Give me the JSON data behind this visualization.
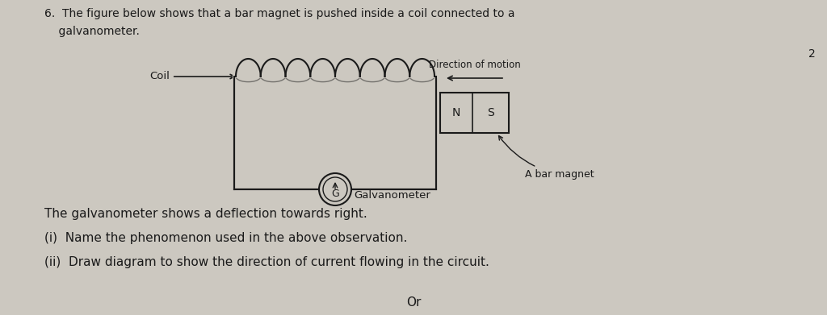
{
  "bg_color": "#ccc8c0",
  "text_color": "#1a1a1a",
  "title_line1": "6.  The figure below shows that a bar magnet is pushed inside a coil connected to a",
  "title_line2": "    galvanometer.",
  "label_coil": "Coil",
  "label_direction": "Direction of motion",
  "label_N": "N",
  "label_S": "S",
  "label_magnet": "A bar magnet",
  "label_galvanometer": "Galvanometer",
  "label_G": "G",
  "text_deflection": "The galvanometer shows a deflection towards right.",
  "text_i": "(i)  Name the phenomenon used in the above observation.",
  "text_ii": "(ii)  Draw diagram to show the direction of current flowing in the circuit.",
  "text_or": "Or",
  "number_right": "2"
}
